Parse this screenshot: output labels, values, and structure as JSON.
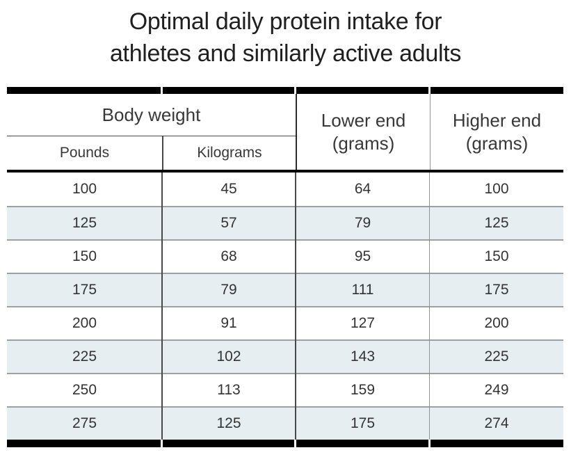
{
  "title": {
    "line1": "Optimal daily protein intake for",
    "line2": "athletes and similarly active adults"
  },
  "header": {
    "body_weight_group": "Body weight",
    "pounds": "Pounds",
    "kilograms": "Kilograms",
    "lower_end": {
      "line1": "Lower end",
      "line2": "(grams)"
    },
    "higher_end": {
      "line1": "Higher end",
      "line2": "(grams)"
    }
  },
  "chart_data": {
    "type": "table",
    "title": "Optimal daily protein intake for athletes and similarly active adults",
    "column_groups": [
      {
        "label": "Body weight",
        "columns": [
          "Pounds",
          "Kilograms"
        ]
      }
    ],
    "columns": [
      "Pounds",
      "Kilograms",
      "Lower end (grams)",
      "Higher end (grams)"
    ],
    "rows": [
      [
        100,
        45,
        64,
        100
      ],
      [
        125,
        57,
        79,
        125
      ],
      [
        150,
        68,
        95,
        150
      ],
      [
        175,
        79,
        111,
        175
      ],
      [
        200,
        91,
        127,
        200
      ],
      [
        225,
        102,
        143,
        225
      ],
      [
        250,
        113,
        159,
        249
      ],
      [
        275,
        125,
        175,
        274
      ]
    ],
    "layout": {
      "shaded_row_indices": [
        1,
        3,
        5,
        7
      ],
      "row_shade_color": "#e7eef1",
      "bar_color": "#000000",
      "row_separator_color": "#9aa0a3",
      "column_line_dark": "#46484a",
      "column_line_light": "#8f9396"
    }
  }
}
